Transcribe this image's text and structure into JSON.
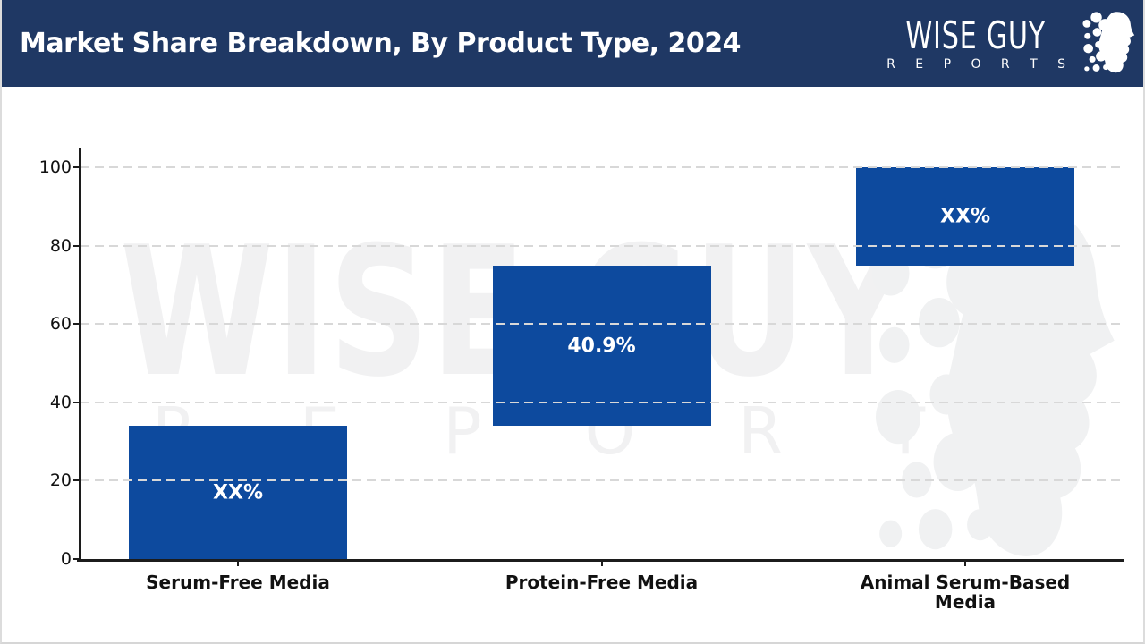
{
  "header": {
    "title": "Market Share Breakdown, By Product Type, 2024",
    "bg_color": "#1f3864",
    "logo": {
      "name": "WISE GUY",
      "tagline": "R E P O R T S"
    }
  },
  "watermark": {
    "name": "WISE GUY",
    "tagline": "R E P O R T S"
  },
  "chart_data": {
    "type": "bar",
    "subtype": "floating-segment-bars (waterfall-style market share, segments stack 0-100%)",
    "title": "Market Share Breakdown, By Product Type, 2024",
    "categories": [
      "Serum-Free Media",
      "Protein-Free Media",
      "Animal Serum-Based Media"
    ],
    "bars": [
      {
        "category": "Serum-Free Media",
        "start": 0,
        "end": 34,
        "label": "XX%"
      },
      {
        "category": "Protein-Free Media",
        "start": 34,
        "end": 74.9,
        "label": "40.9%"
      },
      {
        "category": "Animal Serum-Based Media",
        "start": 74.9,
        "end": 100,
        "label": "XX%"
      }
    ],
    "yticks": [
      0,
      20,
      40,
      60,
      80,
      100
    ],
    "ylim": [
      0,
      105
    ],
    "xlabel": "",
    "ylabel": "",
    "grid": "horizontal dashed, drawn over bars",
    "legend": "none",
    "bar_color": "#0d4a9e",
    "bar_label_color": "#ffffff",
    "note": "XX% labels are masked values in the source image; segment extents estimated from gridlines"
  }
}
